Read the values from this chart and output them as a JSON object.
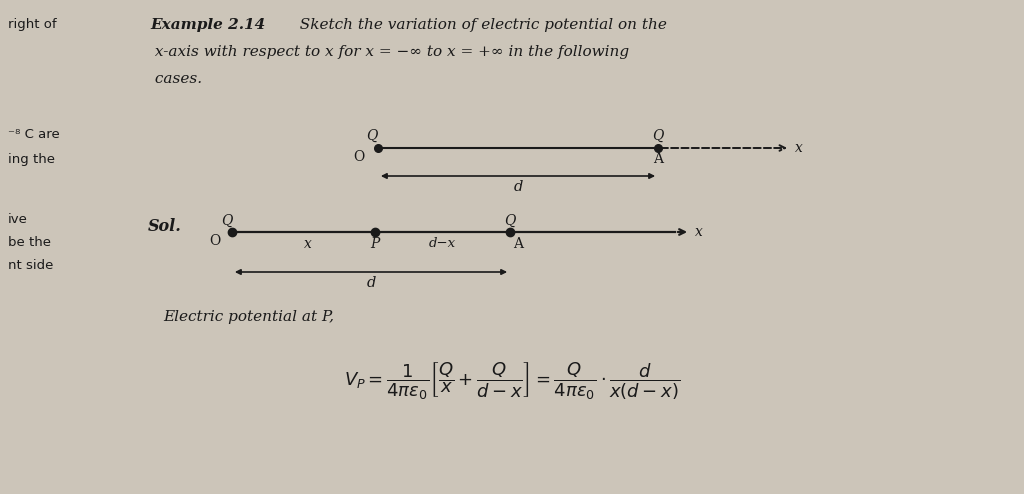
{
  "bg_color": "#ccc5b9",
  "text_color": "#1a1a1a",
  "title_left": "right of",
  "left_label1": "⁻⁸ C are",
  "left_label2": "ing the",
  "left_label3": "ive",
  "left_label4": "be the",
  "left_label5": "nt side",
  "sol_label": "Sol.",
  "elec_label": "Electric potential at P,",
  "line1_bold": "Example 2.14",
  "line1_rest": "  Sketch the variation of electric potential on the",
  "line2": " x-axis with respect to x for x = −∞ to x = +∞ in the following",
  "line3": " cases."
}
